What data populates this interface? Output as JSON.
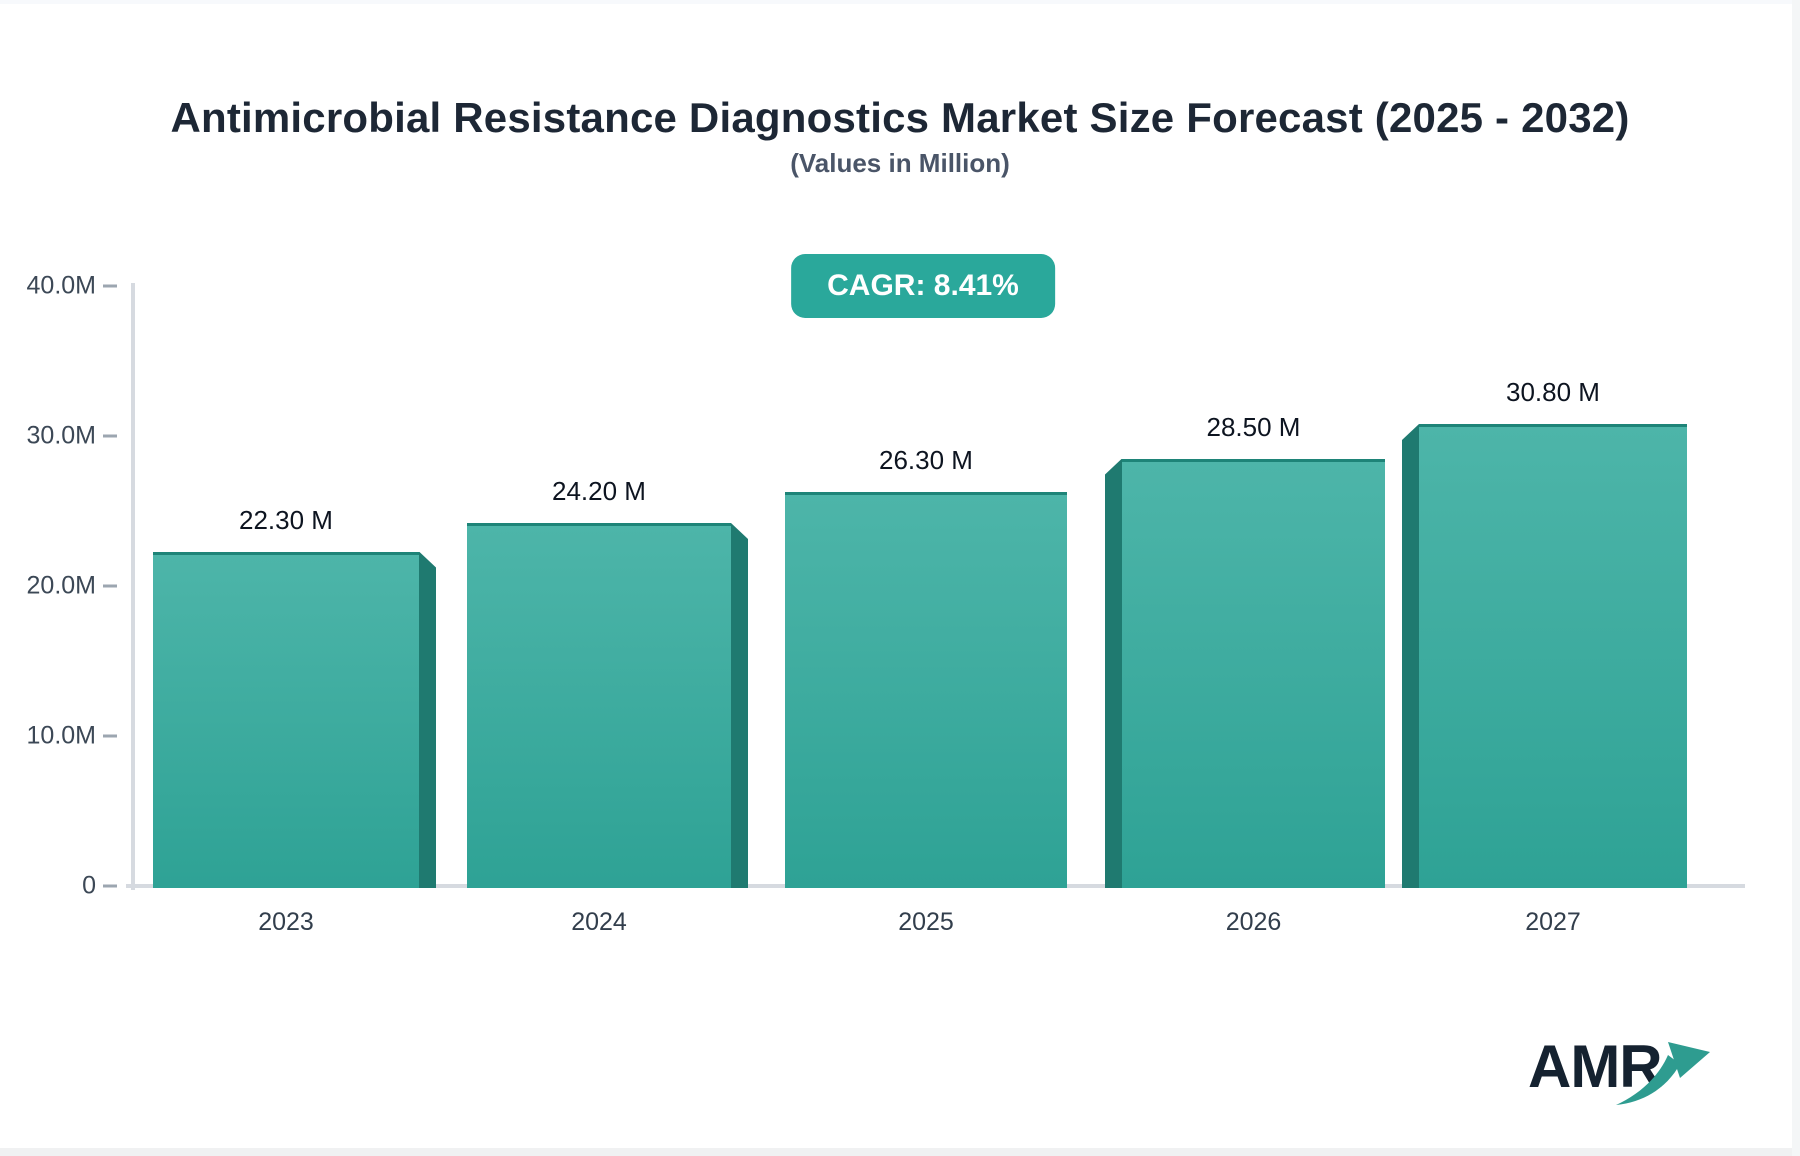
{
  "header": {
    "title": "Antimicrobial Resistance Diagnostics Market Size Forecast (2025 - 2032)",
    "subtitle": "(Values in Million)"
  },
  "badge": {
    "text": "CAGR: 8.41%",
    "bg_color": "#2AA89B"
  },
  "logo": {
    "text": "AMR",
    "arrow_icon": "growth-arrow-icon",
    "arrow_color": "#2E9C90"
  },
  "chart_data": {
    "type": "bar",
    "title": "Antimicrobial Resistance Diagnostics Market Size Forecast (2025 - 2032)",
    "subtitle": "(Values in Million)",
    "categories": [
      "2023",
      "2024",
      "2025",
      "2026",
      "2027"
    ],
    "values": [
      22.3,
      24.2,
      26.3,
      28.5,
      30.8
    ],
    "value_labels": [
      "22.30 M",
      "24.20 M",
      "26.30 M",
      "28.50 M",
      "30.80 M"
    ],
    "cagr": "8.41%",
    "xlabel": "",
    "ylabel": "",
    "ylim": [
      0,
      40
    ],
    "yticks": [
      {
        "label": "0",
        "value": 0
      },
      {
        "label": "10.0M",
        "value": 10
      },
      {
        "label": "20.0M",
        "value": 20
      },
      {
        "label": "30.0M",
        "value": 30
      },
      {
        "label": "40.0M",
        "value": 40
      }
    ],
    "grid": false,
    "legend": false,
    "bar_colors": {
      "face_top": "#4DB5A9",
      "face_bottom": "#2EA295",
      "side": "#1F7A70",
      "top_edge": "#1E8478"
    }
  }
}
